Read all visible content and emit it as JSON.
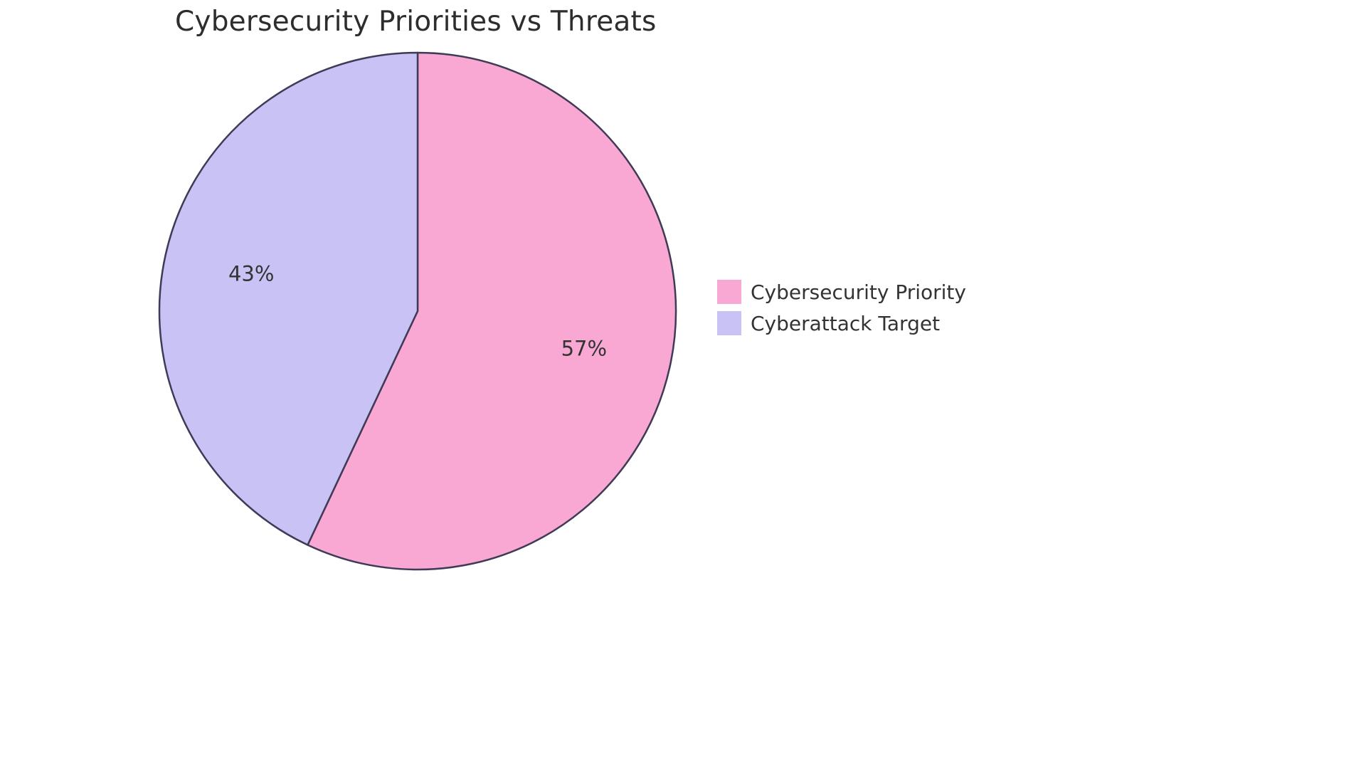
{
  "chart_data": {
    "type": "pie",
    "title": "Cybersecurity Priorities vs Threats",
    "labels": [
      "Cybersecurity Priority",
      "Cyberattack Target"
    ],
    "values": [
      57,
      43
    ],
    "percent_labels": [
      "57%",
      "43%"
    ],
    "colors": [
      "#F9A8D4",
      "#C8C2F5"
    ],
    "stroke_color": "#3F3A56",
    "stroke_width": 2.5,
    "start_angle_deg": -90,
    "direction": "clockwise",
    "center": [
      587,
      437
    ],
    "radius": 363,
    "label_radius_frac": 0.66,
    "label_color": "#333333",
    "legend_position": "right",
    "background": "#ffffff"
  }
}
